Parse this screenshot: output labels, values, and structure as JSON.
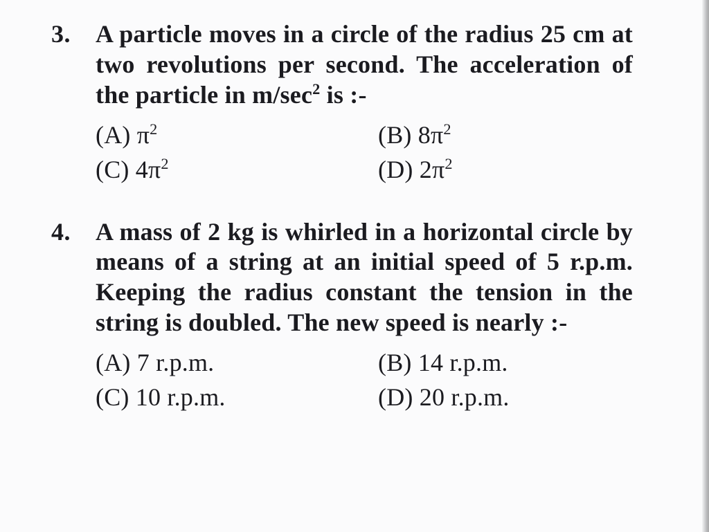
{
  "questions": [
    {
      "number": "3.",
      "stem_html": "A particle moves in a circle of the radius 25 cm at two revolutions per second. The acceleration of the particle in m/sec<sup>2</sup> is :-",
      "options": {
        "A": "(A)  π<sup>2</sup>",
        "B": "(B)  8π<sup>2</sup>",
        "C": "(C)  4π<sup>2</sup>",
        "D": "(D)  2π<sup>2</sup>"
      }
    },
    {
      "number": "4.",
      "stem_html": "A mass of 2 kg is whirled in a horizontal circle by means of a string at an initial speed of 5 r.p.m. Keeping the radius constant the tension in the string is doubled. The new speed is nearly :-",
      "options": {
        "A": "(A)  7 r.p.m.",
        "B": "(B)  14 r.p.m.",
        "C": "(C)  10 r.p.m.",
        "D": "(D)  20 r.p.m."
      }
    }
  ]
}
